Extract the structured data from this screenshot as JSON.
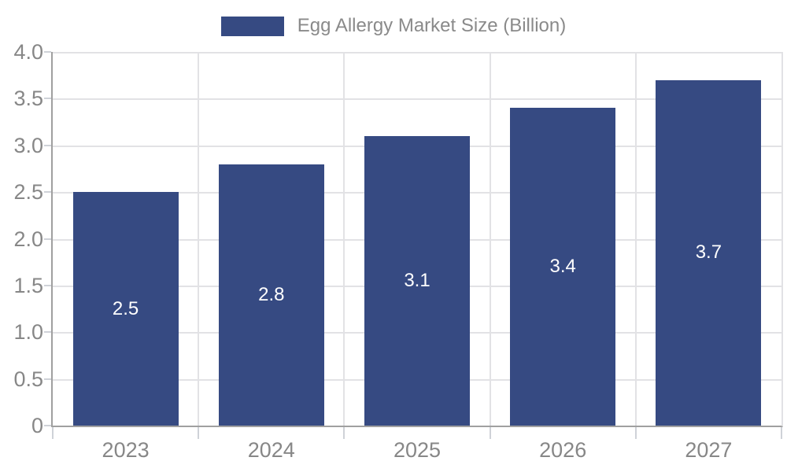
{
  "chart_data": {
    "type": "bar",
    "legend_label": "Egg Allergy Market Size (Billion)",
    "legend_position": "top-center",
    "categories": [
      "2023",
      "2024",
      "2025",
      "2026",
      "2027"
    ],
    "values": [
      2.5,
      2.8,
      3.1,
      3.4,
      3.7
    ],
    "bar_labels": [
      "2.5",
      "2.8",
      "3.1",
      "3.4",
      "3.7"
    ],
    "xlabel": "",
    "ylabel": "",
    "ylim": [
      0,
      4.0
    ],
    "ytick_values": [
      0,
      0.5,
      1,
      1.5,
      2,
      2.5,
      3,
      3.5,
      4
    ],
    "ytick_labels": [
      "0",
      "0.5",
      "1.0",
      "1.5",
      "2.0",
      "2.5",
      "3.0",
      "3.5",
      "4.0"
    ],
    "grid": true,
    "colors": {
      "bar": "#364a82",
      "bar_label": "#ffffff",
      "legend_text": "#8a8a8a",
      "tick_label": "#878787",
      "axis_line": "#a0a0a0",
      "gridline": "#e2e2e5",
      "tick_mark": "#cfd2d8",
      "background": "#ffffff"
    }
  }
}
